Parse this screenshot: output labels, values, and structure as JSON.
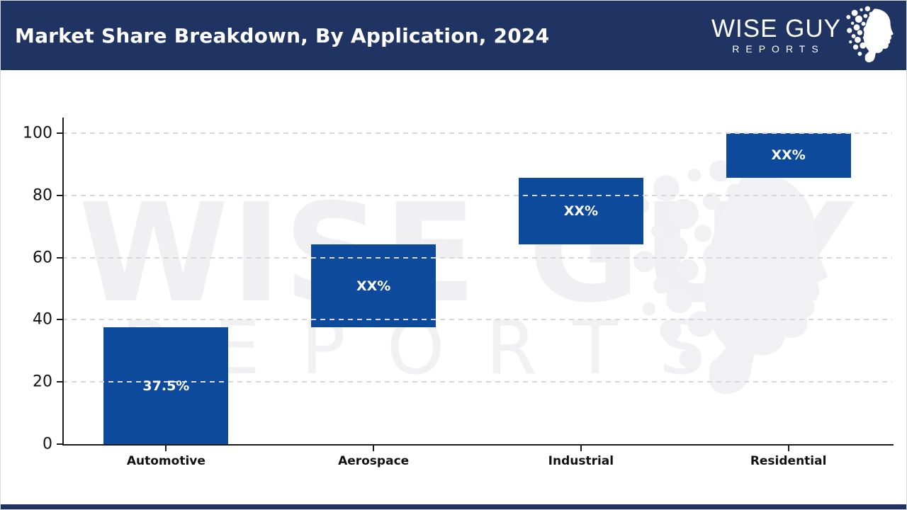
{
  "header": {
    "title": "Market Share Breakdown, By Application, 2024",
    "bg_color": "#203463",
    "logo": {
      "line1": "WISE GUY",
      "line2": "REPORTS"
    }
  },
  "watermark": {
    "line1": "WISE GUY",
    "line2": "REPORTS"
  },
  "footer": {
    "bg_color": "#203463"
  },
  "chart_data": {
    "type": "bar",
    "variant": "waterfall",
    "title": "Market Share Breakdown, By Application, 2024",
    "categories": [
      "Automotive",
      "Aerospace",
      "Industrial",
      "Residential"
    ],
    "segments": [
      {
        "category": "Automotive",
        "start": 0,
        "end": 37.5,
        "label": "37.5%"
      },
      {
        "category": "Aerospace",
        "start": 37.5,
        "end": 64.3,
        "label": "XX%"
      },
      {
        "category": "Industrial",
        "start": 64.3,
        "end": 85.7,
        "label": "XX%"
      },
      {
        "category": "Residential",
        "start": 85.7,
        "end": 100,
        "label": "XX%"
      }
    ],
    "xlabel": "",
    "ylabel": "",
    "ylim": [
      0,
      100
    ],
    "yticks": [
      0,
      20,
      40,
      60,
      80,
      100
    ],
    "grid": "horizontal-dashed",
    "legend": null,
    "bar_color": "#0d4a9c",
    "bar_label_color": "#ffffff",
    "axis_color": "#1a1a1a",
    "gridline_color": "#d8d8d8"
  }
}
